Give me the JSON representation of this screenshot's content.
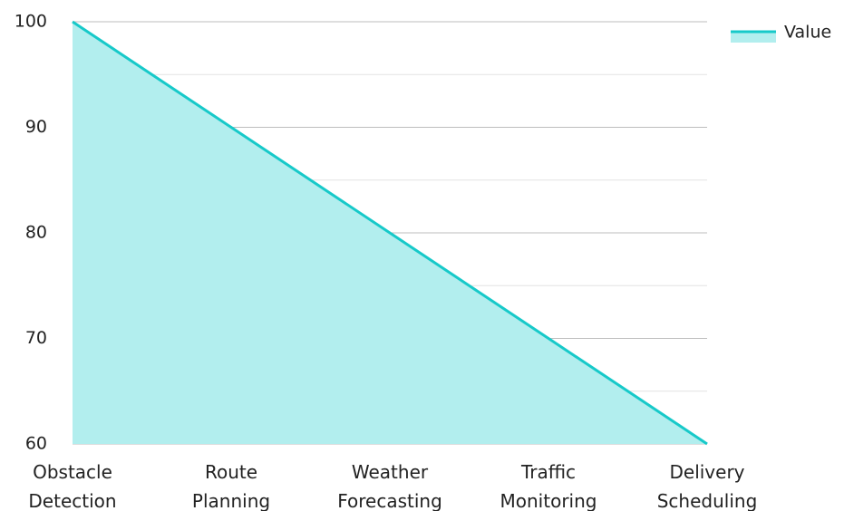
{
  "chart_data": {
    "type": "area",
    "categories": [
      "Obstacle Detection",
      "Route Planning",
      "Weather Forecasting",
      "Traffic Monitoring",
      "Delivery Scheduling"
    ],
    "category_lines": [
      [
        "Obstacle",
        "Detection"
      ],
      [
        "Route",
        "Planning"
      ],
      [
        "Weather",
        "Forecasting"
      ],
      [
        "Traffic",
        "Monitoring"
      ],
      [
        "Delivery",
        "Scheduling"
      ]
    ],
    "series": [
      {
        "name": "Value",
        "values": [
          100,
          90,
          80,
          70,
          60
        ]
      }
    ],
    "ylim": [
      60,
      100
    ],
    "yticks": [
      60,
      70,
      80,
      90,
      100
    ],
    "grid": true,
    "legend": "top-right",
    "title": "",
    "xlabel": "",
    "ylabel": "",
    "colors": {
      "line": "#17c9c9",
      "fill": "#b2eeee",
      "grid_major": "#bdbdbd",
      "grid_minor": "#e3e3e3"
    }
  }
}
